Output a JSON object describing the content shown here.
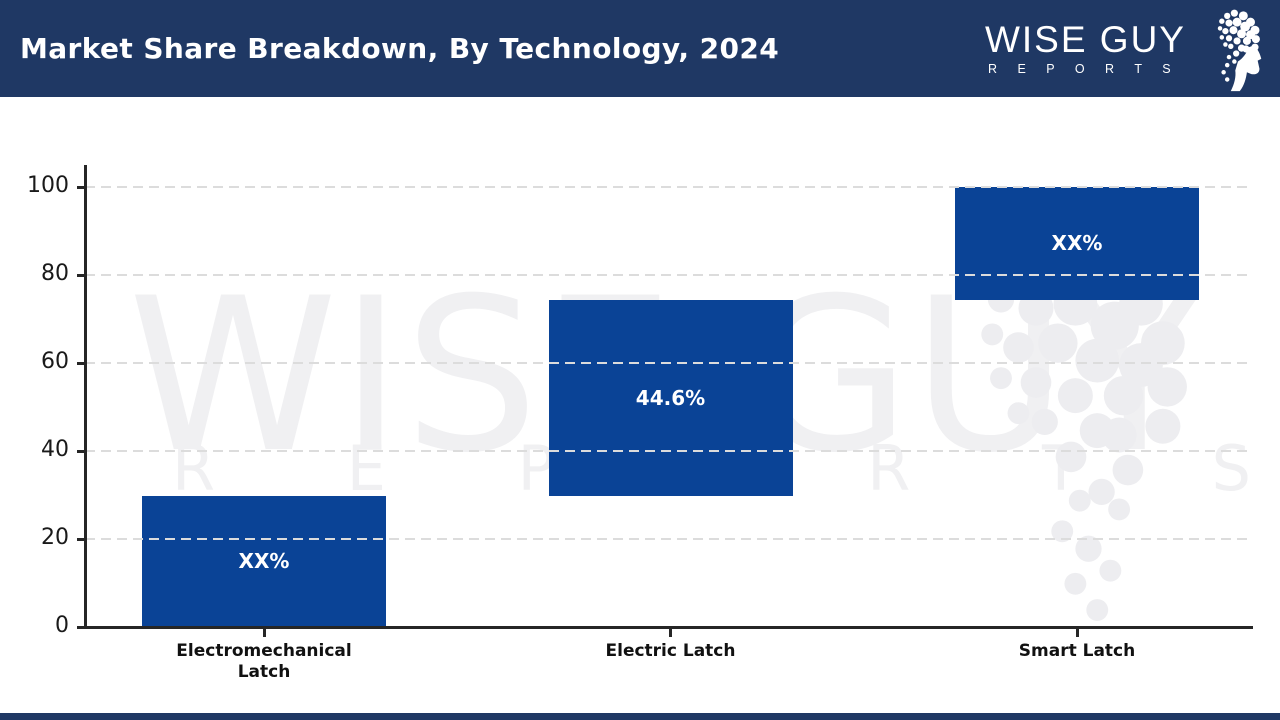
{
  "header": {
    "title": "Market Share Breakdown, By Technology, 2024",
    "logo": {
      "name_line": "WISE GUY",
      "sub_line": "R E P O R T S"
    }
  },
  "watermark": {
    "line1": "WISE GUY",
    "line2": "R E P O R T S"
  },
  "chart_data": {
    "type": "bar",
    "variant": "stacked-waterfall-segments",
    "title": "Market Share Breakdown, By Technology, 2024",
    "categories": [
      "Electromechanical\nLatch",
      "Electric Latch",
      "Smart Latch"
    ],
    "series": [
      {
        "name": "Electromechanical Latch",
        "start": 0,
        "end": 29.8,
        "label": "XX%"
      },
      {
        "name": "Electric Latch",
        "start": 29.8,
        "end": 74.4,
        "label": "44.6%"
      },
      {
        "name": "Smart Latch",
        "start": 74.4,
        "end": 100,
        "label": "XX%"
      }
    ],
    "xlabel": "",
    "ylabel": "",
    "yticks": [
      0,
      20,
      40,
      60,
      80,
      100
    ],
    "ylim": [
      0,
      105
    ],
    "grid": "dashed-horizontal",
    "legend": "none",
    "colors": {
      "bar": "#0a4396",
      "grid": "#dcdcdc",
      "axis": "#262626",
      "bar_label": "#ffffff",
      "tick_label": "#1a1a1a"
    }
  },
  "colors": {
    "header_bg": "#1f3864",
    "footer_bg": "#1f3864",
    "page_bg": "#ffffff",
    "watermark": "#f0f0f2"
  }
}
